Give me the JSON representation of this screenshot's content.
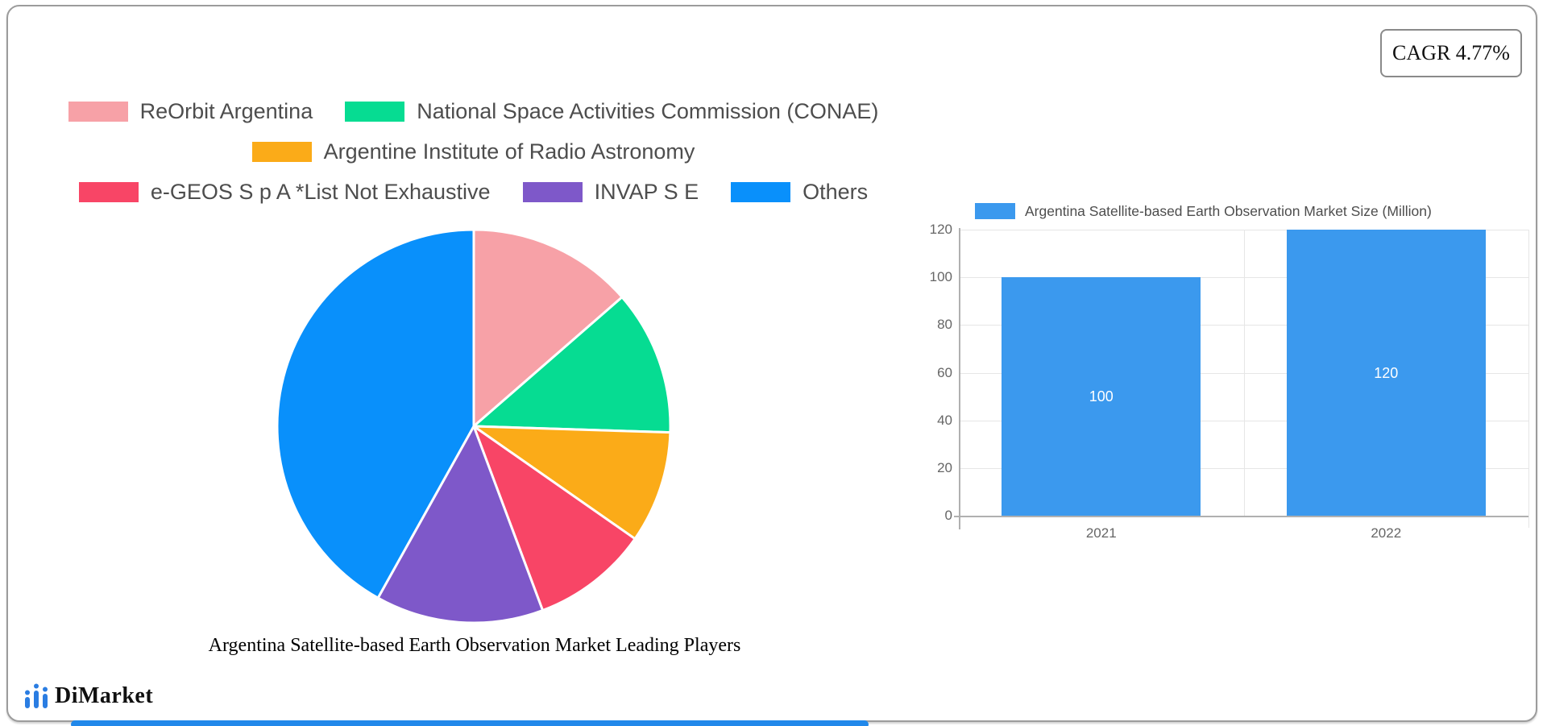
{
  "cagr": {
    "label": "CAGR 4.77%"
  },
  "brand": {
    "name": "DiMarket"
  },
  "colors": {
    "card_border": "#9c9c9c",
    "legend_text": "#4d4d4d",
    "axis_text": "#666666",
    "gridline": "#e6e6e6",
    "axis_line": "#b0b0b0",
    "bottom_accent": "#2188ea",
    "logo_blue": "#2a7de2"
  },
  "chart_data": [
    {
      "type": "pie",
      "title": "Argentina Satellite-based Earth Observation Market Leading Players",
      "labels": [
        "ReOrbit Argentina",
        "National Space Activities Commission (CONAE)",
        "Argentine Institute of Radio Astronomy",
        "e-GEOS S p A *List Not Exhaustive",
        "INVAP S E",
        "Others"
      ],
      "values": [
        13.6,
        11.9,
        9.2,
        9.6,
        13.8,
        41.9
      ],
      "unit": "percent-of-circle (estimated from slice angles)",
      "colors": [
        "#f7a1a7",
        "#06dc92",
        "#fbab18",
        "#f84566",
        "#7e58c9",
        "#0990fb"
      ],
      "legend_rows": [
        [
          0,
          1
        ],
        [
          2
        ],
        [
          3,
          4,
          5
        ]
      ],
      "start_angle_deg": 0,
      "direction": "clockwise",
      "slice_border_color": "#ffffff"
    },
    {
      "type": "bar",
      "series_label": "Argentina Satellite-based Earth Observation Market Size (Million)",
      "categories": [
        "2021",
        "2022"
      ],
      "values": [
        100,
        120
      ],
      "value_labels": [
        "100",
        "120"
      ],
      "bar_color": "#3b99ee",
      "ylim": [
        0,
        120
      ],
      "yticks": [
        0,
        20,
        40,
        60,
        80,
        100,
        120
      ],
      "xlabel": "",
      "ylabel": "",
      "grid": true,
      "legend_position": "top"
    }
  ]
}
